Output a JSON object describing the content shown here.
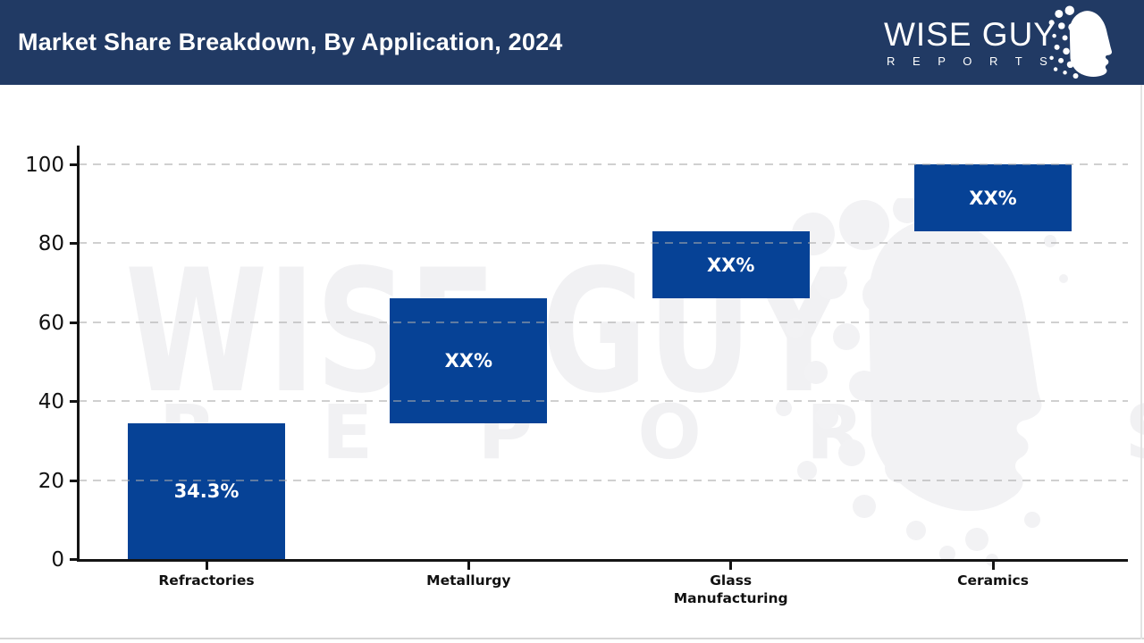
{
  "header": {
    "title": "Market Share Breakdown, By Application, 2024",
    "logo": {
      "name": "WISE GUY",
      "tagline": "R E P O R T S"
    }
  },
  "watermark": {
    "wordmark": "WISE GUY",
    "tagline": "R E P O R T S"
  },
  "chart_data": {
    "type": "bar",
    "subtype": "waterfall",
    "title": "Market Share Breakdown, By Application, 2024",
    "categories": [
      "Refractories",
      "Metallurgy",
      "Glass\nManufacturing",
      "Ceramics"
    ],
    "segments": [
      {
        "category": "Refractories",
        "start": 0,
        "end": 34.3,
        "label": "34.3%"
      },
      {
        "category": "Metallurgy",
        "start": 34.3,
        "end": 66,
        "label": "XX%"
      },
      {
        "category": "Glass Manufacturing",
        "start": 66,
        "end": 83,
        "label": "XX%"
      },
      {
        "category": "Ceramics",
        "start": 83,
        "end": 100,
        "label": "XX%"
      }
    ],
    "y_ticks": [
      0,
      20,
      40,
      60,
      80,
      100
    ],
    "ylim": [
      0,
      105
    ],
    "xlabel": "",
    "ylabel": "",
    "grid": "dashed-horizontal",
    "legend": "none",
    "bar_color": "#064296",
    "label_color": "#ffffff",
    "axis_color": "#141414"
  },
  "colors": {
    "header_bg": "#213a64",
    "watermark": "#f1f1f3",
    "gridline": "#d9d9d9"
  }
}
